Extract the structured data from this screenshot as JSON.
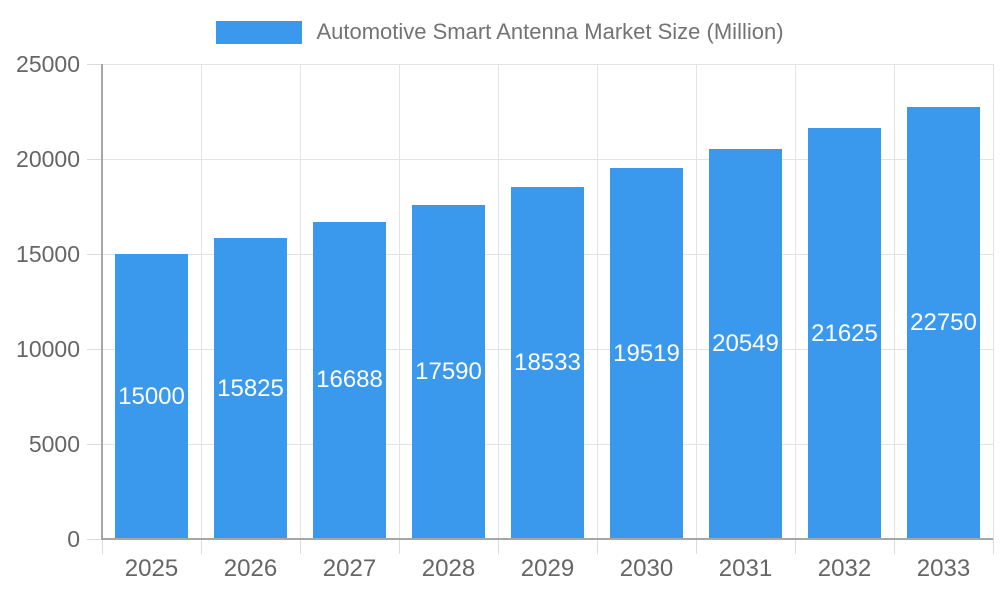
{
  "legend": {
    "label": "Automotive Smart Antenna Market Size (Million)"
  },
  "chart_data": {
    "type": "bar",
    "title": "Automotive Smart Antenna Market Size (Million)",
    "series_name": "Automotive Smart Antenna Market Size (Million)",
    "categories": [
      "2025",
      "2026",
      "2027",
      "2028",
      "2029",
      "2030",
      "2031",
      "2032",
      "2033"
    ],
    "values": [
      15000,
      15825,
      16688,
      17590,
      18533,
      19519,
      20549,
      21625,
      22750
    ],
    "xlabel": "",
    "ylabel": "",
    "ylim": [
      0,
      25000
    ],
    "yticks": [
      0,
      5000,
      10000,
      15000,
      20000,
      25000
    ],
    "grid": true,
    "legend_position": "top",
    "colors": {
      "bar": "#3A99EC",
      "value_label": "#FFFFFF",
      "grid": "#E3E3E3",
      "axis": "#A6A6A6",
      "tick_text": "#666666",
      "legend_text": "#737373"
    }
  }
}
